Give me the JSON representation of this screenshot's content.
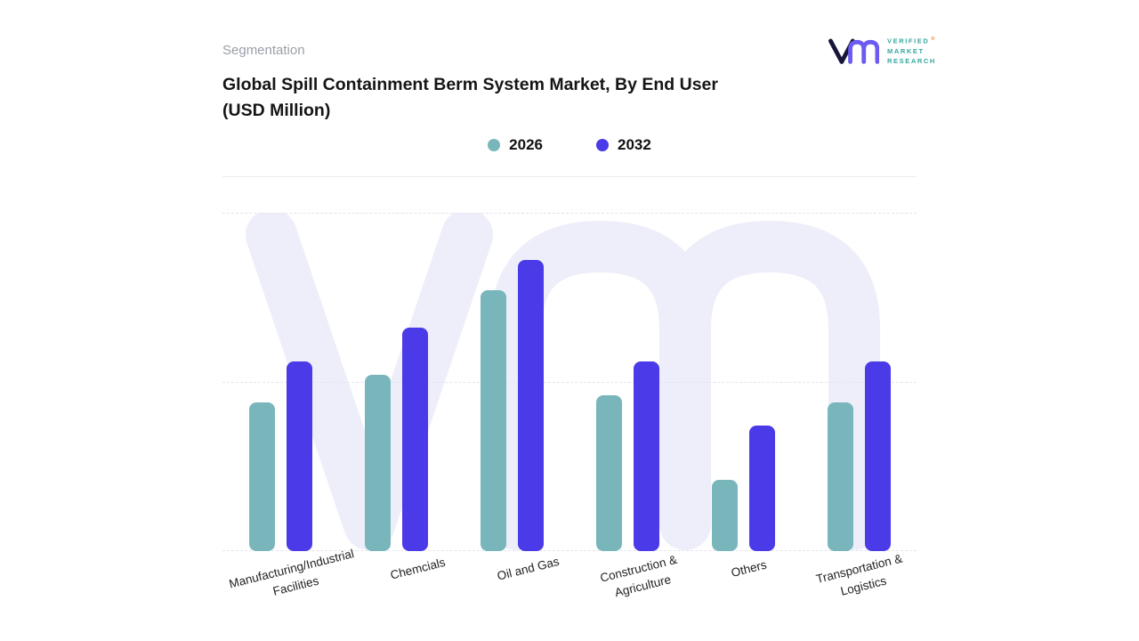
{
  "header": {
    "eyebrow": "Segmentation",
    "title_line1": "Global Spill Containment Berm System Market, By End User",
    "title_line2": "(USD Million)"
  },
  "logo": {
    "line1": "VERIFIED",
    "line2": "MARKET",
    "line3": "RESEARCH",
    "registered": "®"
  },
  "colors": {
    "series_2026": "#79b6bb",
    "series_2032": "#4b3ae8",
    "watermark": "#edeef9",
    "gridline": "#e4e5f0",
    "logo_mark_dark": "#16163a",
    "logo_mark_purple": "#6c5bf0",
    "logo_text_teal": "#35a79e"
  },
  "chart_data": {
    "type": "bar",
    "title": "Global Spill Containment Berm System Market, By End User (USD Million)",
    "xlabel": "",
    "ylabel": "",
    "ylim": [
      0,
      100
    ],
    "grid": "dashed-horizontal",
    "legend_position": "top-center",
    "value_axis_visible": false,
    "categories": [
      "Manufacturing/Industrial Facilities",
      "Chemcials",
      "Oil and Gas",
      "Construction & Agriculture",
      "Others",
      "Transportation & Logistics"
    ],
    "series": [
      {
        "name": "2026",
        "color": "#79b6bb",
        "values": [
          44,
          52,
          77,
          46,
          21,
          44
        ]
      },
      {
        "name": "2032",
        "color": "#4b3ae8",
        "values": [
          56,
          66,
          86,
          56,
          37,
          56
        ]
      }
    ]
  }
}
